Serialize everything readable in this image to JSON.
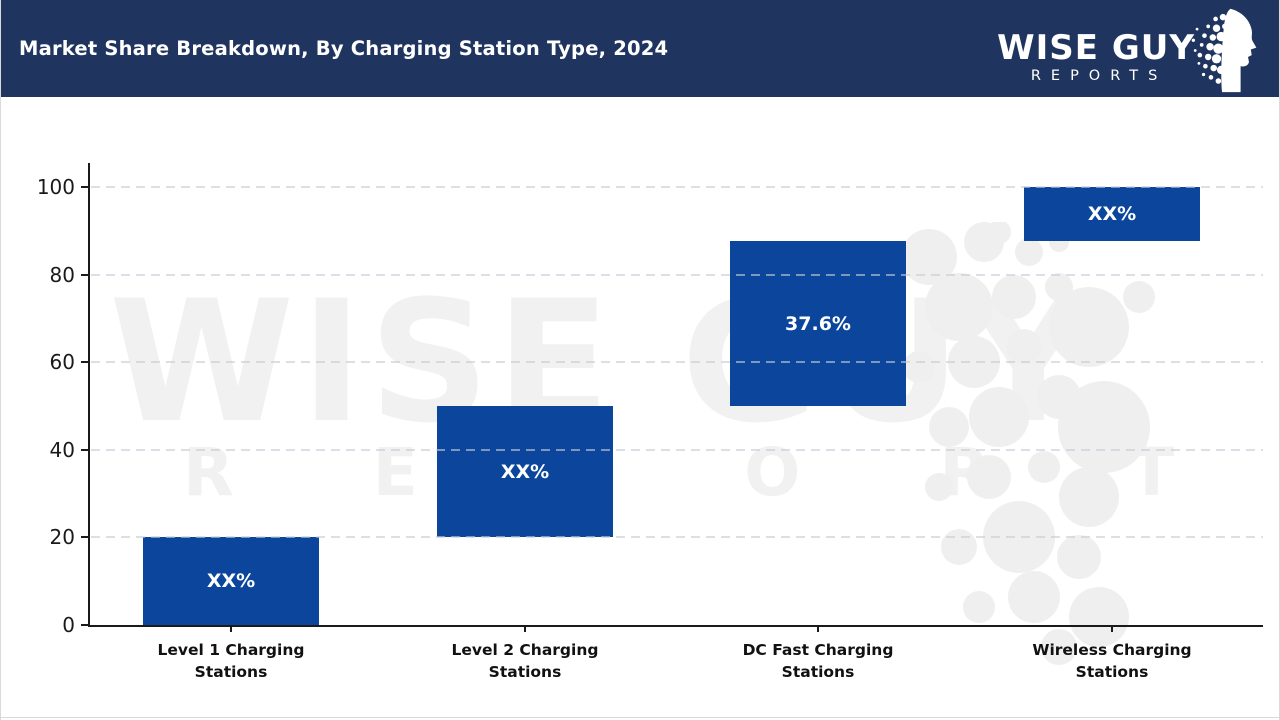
{
  "header": {
    "title": "Market Share Breakdown, By Charging Station Type, 2024",
    "logo": {
      "line1": "WISE GUY",
      "line2": "REPORTS"
    }
  },
  "watermark": {
    "line1": "WISE GUY",
    "line2": "R E P O R T S"
  },
  "chart_data": {
    "type": "bar",
    "subtype": "floating-waterfall",
    "title": "Market Share Breakdown, By Charging Station Type, 2024",
    "categories": [
      [
        "Level 1 Charging",
        "Stations"
      ],
      [
        "Level 2 Charging",
        "Stations"
      ],
      [
        "DC Fast Charging",
        "Stations"
      ],
      [
        "Wireless Charging",
        "Stations"
      ]
    ],
    "bars": [
      {
        "start": 0,
        "end": 20,
        "label": "XX%"
      },
      {
        "start": 20,
        "end": 50,
        "label": "XX%"
      },
      {
        "start": 50,
        "end": 87.6,
        "label": "37.6%"
      },
      {
        "start": 87.6,
        "end": 100,
        "label": "XX%"
      }
    ],
    "yticks": [
      0,
      20,
      40,
      60,
      80,
      100
    ],
    "ylim": [
      0,
      105.5
    ],
    "xlabel": "",
    "ylabel": "",
    "grid": "dashed-horizontal",
    "legend": "none",
    "colors": {
      "bar": "#0b459c",
      "bar_label": "#ffffff",
      "header_bg": "#1f3560",
      "grid": "rgba(197,203,214,0.62)",
      "axis": "#1a1a1a",
      "watermark": "#f1f1f1",
      "watermark_dots": "#efefef"
    }
  }
}
